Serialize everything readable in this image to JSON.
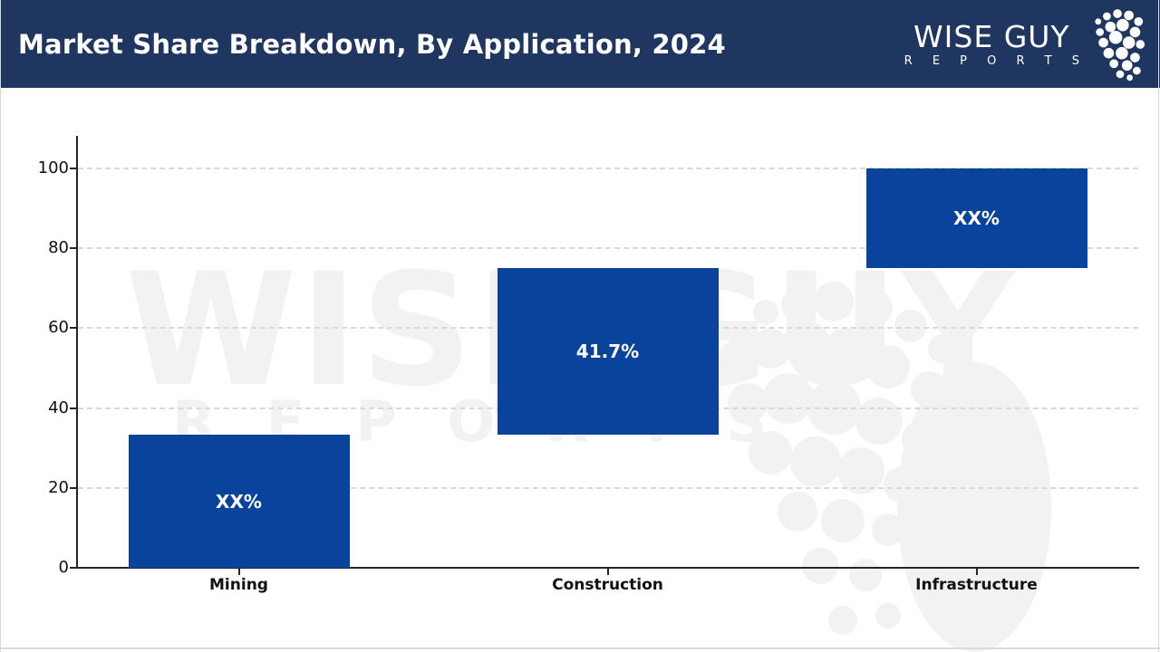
{
  "header": {
    "title": "Market Share Breakdown, By Application, 2024",
    "logo": {
      "line1": "WISE GUY",
      "line2": "R E P O R T S"
    }
  },
  "watermark": {
    "line1": "WISE GUY",
    "line2": "REPORTS"
  },
  "colors": {
    "header_bg": "#1f3660",
    "bar": "#09439b",
    "grid": "#d9d9d9",
    "axis": "#262626",
    "watermark": "#f2f2f2",
    "tick_text": "#111111",
    "bar_label_text": "#ffffff"
  },
  "chart_data": {
    "type": "bar",
    "variant": "floating-waterfall",
    "title": "Market Share Breakdown, By Application, 2024",
    "categories": [
      "Mining",
      "Construction",
      "Infrastructure"
    ],
    "series": [
      {
        "category": "Mining",
        "range_start": 0,
        "range_end": 33.3,
        "value_label": "XX%"
      },
      {
        "category": "Construction",
        "range_start": 33.3,
        "range_end": 75,
        "value_label": "41.7%"
      },
      {
        "category": "Infrastructure",
        "range_start": 75,
        "range_end": 100,
        "value_label": "XX%"
      }
    ],
    "y_ticks": [
      0,
      20,
      40,
      60,
      80,
      100
    ],
    "ylim": [
      0,
      100
    ],
    "xlabel": "",
    "ylabel": "",
    "grid": "horizontal-dashed",
    "legend": "none"
  }
}
